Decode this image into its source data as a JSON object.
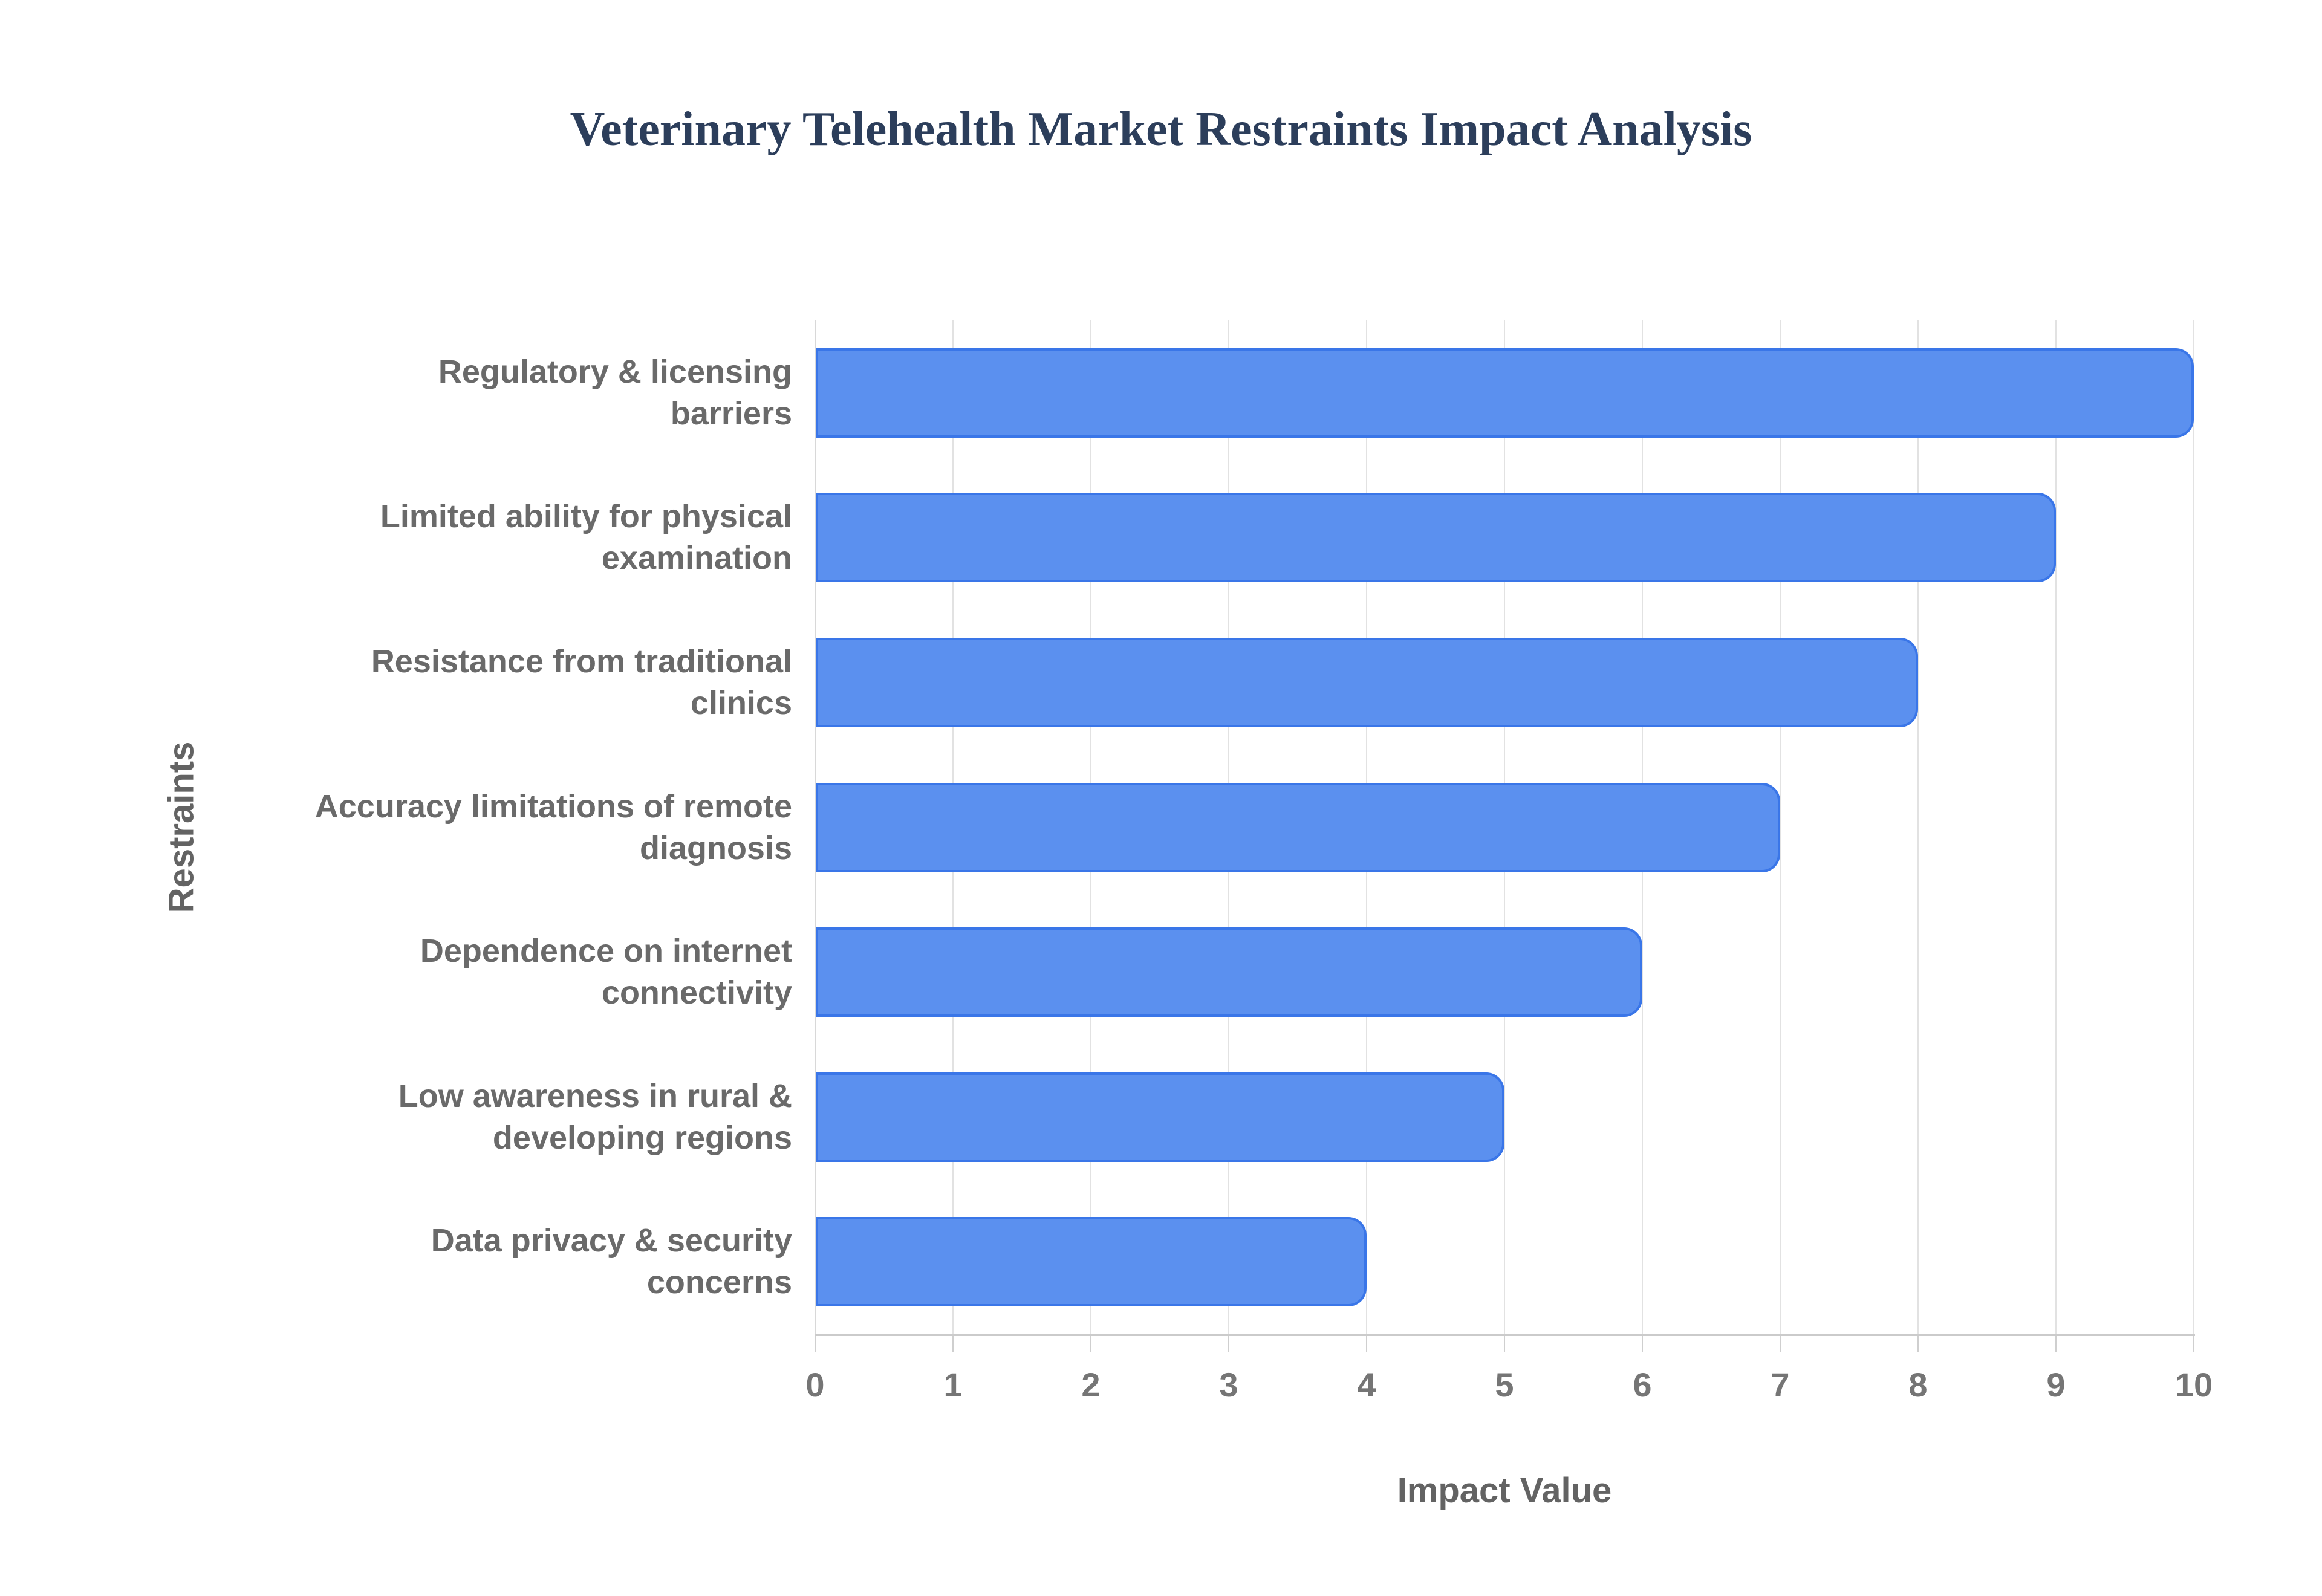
{
  "chart_data": {
    "type": "bar",
    "orientation": "horizontal",
    "title": "Veterinary Telehealth Market Restraints Impact Analysis",
    "categories": [
      "Regulatory & licensing\nbarriers",
      "Limited ability for physical\nexamination",
      "Resistance from traditional\nclinics",
      "Accuracy limitations of remote\ndiagnosis",
      "Dependence on internet\nconnectivity",
      "Low awareness in rural &\ndeveloping regions",
      "Data privacy & security\nconcerns"
    ],
    "values": [
      10,
      9,
      8,
      7,
      6,
      5,
      4
    ],
    "xlabel": "Impact Value",
    "ylabel": "Restraints",
    "xlim": [
      0,
      10
    ],
    "xticks": [
      "0",
      "1",
      "2",
      "3",
      "4",
      "5",
      "6",
      "7",
      "8",
      "9",
      "10"
    ],
    "grid": true,
    "legend": false,
    "colors": {
      "bar_fill": "#5b90ef",
      "bar_border": "#3a76e8",
      "gridline": "#e2e2e2",
      "y_axis_line": "#d8d8d8",
      "x_axis_line": "#cbcbcb",
      "tick_mark": "#cfcfcf",
      "tick_label_text": "#757575",
      "category_label_text": "#6a6a6a",
      "axis_title_text": "#636363",
      "title_text": "#2c3e5b"
    }
  }
}
